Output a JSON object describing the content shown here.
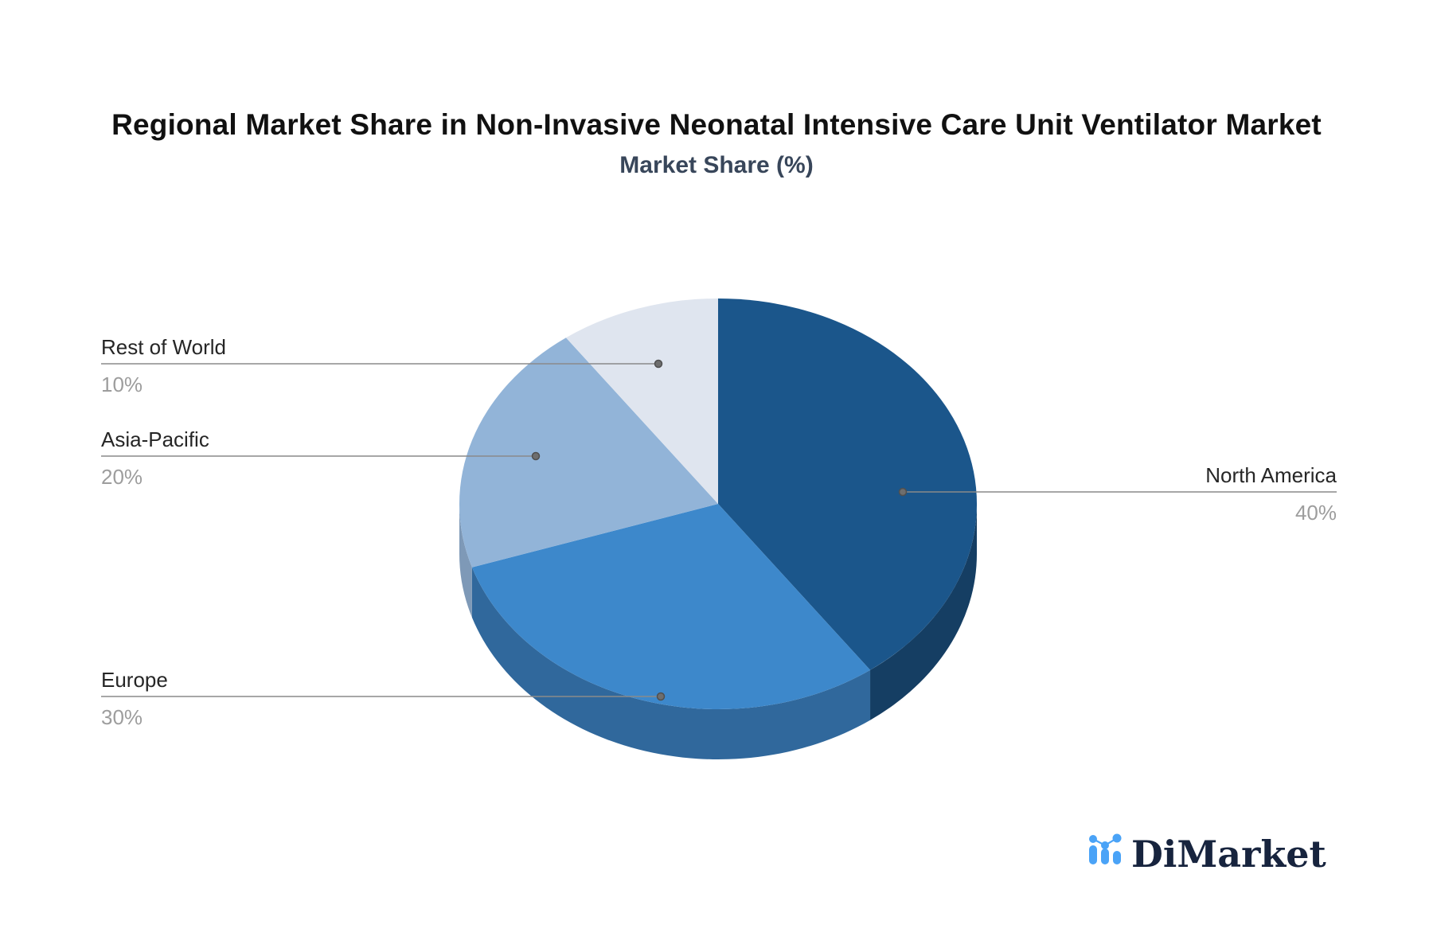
{
  "chart_data": {
    "type": "pie",
    "style": "3d",
    "title": "Regional Market Share in Non-Invasive Neonatal Intensive Care Unit Ventilator Market",
    "subtitle": "Market Share (%)",
    "unit": "%",
    "direction": "clockwise",
    "start_angle_deg": 0,
    "legend_position": "connector-labels",
    "series": [
      {
        "name": "North America",
        "value": 40,
        "pct_label": "40%",
        "color": "#1B568B",
        "side_color": "#153E63"
      },
      {
        "name": "Europe",
        "value": 30,
        "pct_label": "30%",
        "color": "#3D88CB",
        "side_color": "#30689C"
      },
      {
        "name": "Asia-Pacific",
        "value": 20,
        "pct_label": "20%",
        "color": "#92B4D8",
        "side_color": "#7E99B7"
      },
      {
        "name": "Rest of World",
        "value": 10,
        "pct_label": "10%",
        "color": "#DFE5EF",
        "side_color": "#AEB8C9"
      }
    ],
    "colors": {
      "label_text": "#262626",
      "pct_text": "#9D9D9D",
      "connector": "#8A8A8A",
      "title_text": "#111111",
      "subtitle_text": "#38465A"
    },
    "brand": {
      "logo_text": "DiMarket",
      "logo_color": "#17243E",
      "icon_color": "#4AA3F7"
    }
  }
}
